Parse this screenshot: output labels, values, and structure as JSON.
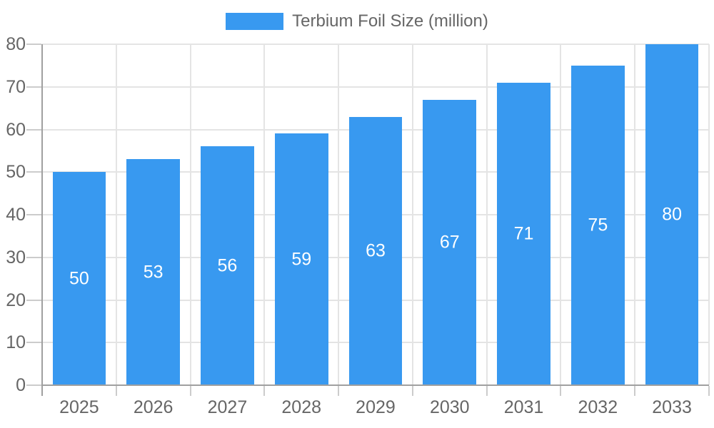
{
  "legend": {
    "label": "Terbium Foil Size (million)"
  },
  "chart_data": {
    "type": "bar",
    "title": "Terbium Foil Size (million)",
    "categories": [
      "2025",
      "2026",
      "2027",
      "2028",
      "2029",
      "2030",
      "2031",
      "2032",
      "2033"
    ],
    "values": [
      50,
      53,
      56,
      59,
      63,
      67,
      71,
      75,
      80
    ],
    "series": [
      {
        "name": "Terbium Foil Size (million)",
        "values": [
          50,
          53,
          56,
          59,
          63,
          67,
          71,
          75,
          80
        ]
      }
    ],
    "bar_value_labels_visible": true,
    "xlabel": "",
    "ylabel": "",
    "ylim": [
      0,
      80
    ],
    "yticks": [
      0,
      10,
      20,
      30,
      40,
      50,
      60,
      70,
      80
    ],
    "grid": true,
    "legend_position": "top-center"
  },
  "colors": {
    "bar": "#3899f0",
    "grid": "#e4e4e4",
    "tick": "#cccccc",
    "axis": "#a0a0a0",
    "axis_text": "#666666",
    "legend_text": "#666666",
    "bar_label_text": "#ffffff",
    "background": "#ffffff"
  }
}
